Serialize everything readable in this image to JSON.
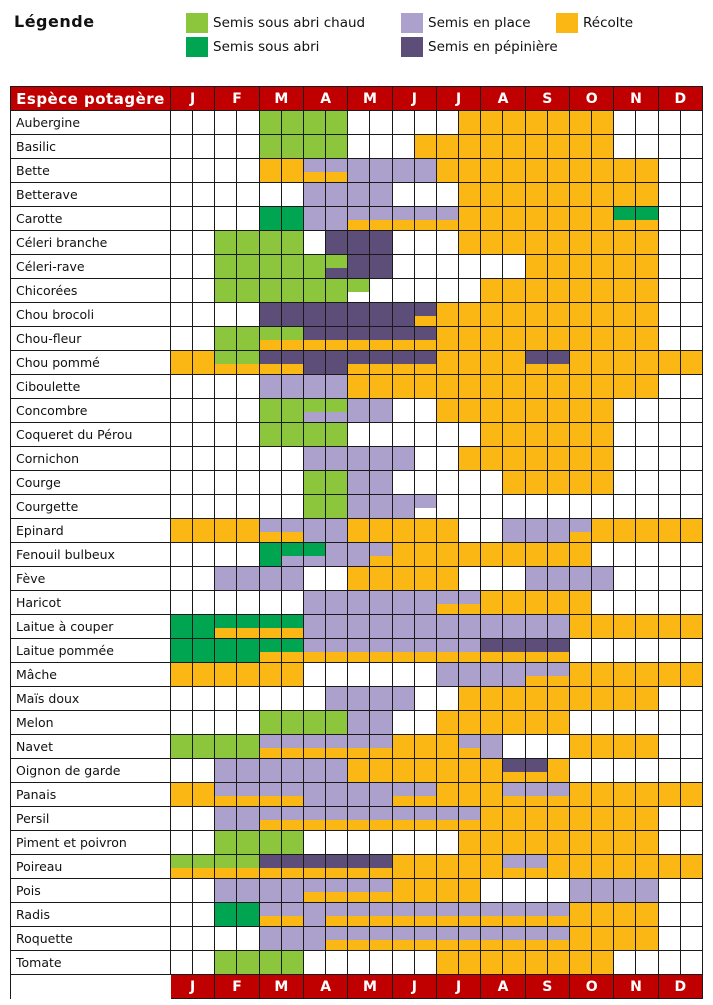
{
  "colors": {
    "AC": "#8cc63c",
    "AB": "#00a551",
    "P": "#aba1cc",
    "PE": "#5c4e78",
    "R": "#fbb713",
    "header_bg": "#c00000",
    "header_text": "#ffffff",
    "grid_line": "#1a1a1a"
  },
  "chart_data": {
    "type": "table",
    "legend_title": "Légende",
    "species_header": "Espèce potagère",
    "months": [
      "J",
      "F",
      "M",
      "A",
      "M",
      "J",
      "J",
      "A",
      "S",
      "O",
      "N",
      "D"
    ],
    "columns_per_month": 2,
    "legend": [
      {
        "key": "AC",
        "label": "Semis sous abri chaud"
      },
      {
        "key": "AB",
        "label": "Semis sous abri"
      },
      {
        "key": "P",
        "label": "Semis en place"
      },
      {
        "key": "PE",
        "label": "Semis en pépinière"
      },
      {
        "key": "R",
        "label": "Récolte"
      }
    ],
    "cell_codes_doc": "24 half-month cells Jan1..Dec2; '' = empty, single key = full cell, 'X/Y' = top X / bottom Y, '_' = white half",
    "rows": [
      {
        "name": "Aubergine",
        "cells": [
          "",
          "",
          "",
          "",
          "AC",
          "AC",
          "AC",
          "AC",
          "",
          "",
          "",
          "",
          "",
          "R",
          "R",
          "R",
          "R",
          "R",
          "R",
          "R",
          "",
          "",
          "",
          ""
        ]
      },
      {
        "name": "Basilic",
        "cells": [
          "",
          "",
          "",
          "",
          "AC",
          "AC",
          "AC",
          "AC",
          "",
          "",
          "",
          "R",
          "R",
          "R",
          "R",
          "R",
          "R",
          "R",
          "R",
          "R",
          "",
          "",
          "",
          ""
        ]
      },
      {
        "name": "Bette",
        "cells": [
          "",
          "",
          "",
          "",
          "R",
          "R",
          "P/R",
          "P/R",
          "P",
          "P",
          "P",
          "P",
          "R",
          "R",
          "R",
          "R",
          "R",
          "R",
          "R",
          "R",
          "R",
          "R",
          "",
          ""
        ]
      },
      {
        "name": "Betterave",
        "cells": [
          "",
          "",
          "",
          "",
          "",
          "",
          "P",
          "P",
          "P",
          "P",
          "",
          "",
          "",
          "R",
          "R",
          "R",
          "R",
          "R",
          "R",
          "R",
          "R",
          "R",
          "",
          ""
        ]
      },
      {
        "name": "Carotte",
        "cells": [
          "",
          "",
          "",
          "",
          "AB",
          "AB",
          "P",
          "P",
          "P/R",
          "P/R",
          "P/R",
          "P/R",
          "P/R",
          "R",
          "R",
          "R",
          "R",
          "R",
          "R",
          "R",
          "AB/R",
          "AB/R",
          "",
          ""
        ]
      },
      {
        "name": "Céleri branche",
        "cells": [
          "",
          "",
          "AC",
          "AC",
          "AC",
          "AC",
          "",
          "PE",
          "PE",
          "PE",
          "",
          "",
          "",
          "R",
          "R",
          "R",
          "R",
          "R",
          "R",
          "R",
          "R",
          "R",
          "",
          ""
        ]
      },
      {
        "name": "Céleri-rave",
        "cells": [
          "",
          "",
          "AC",
          "AC",
          "AC",
          "AC",
          "AC",
          "AC/PE",
          "PE",
          "PE",
          "",
          "",
          "",
          "",
          "",
          "",
          "R",
          "R",
          "R",
          "R",
          "R",
          "R",
          "",
          ""
        ]
      },
      {
        "name": "Chicorées",
        "cells": [
          "",
          "",
          "AC",
          "AC",
          "AC",
          "AC",
          "AC",
          "AC",
          "AC/_",
          "",
          "",
          "",
          "",
          "",
          "R",
          "R",
          "R",
          "R",
          "R",
          "R",
          "R",
          "R",
          "",
          ""
        ]
      },
      {
        "name": "Chou brocoli",
        "cells": [
          "",
          "",
          "",
          "",
          "PE",
          "PE",
          "PE",
          "PE",
          "PE",
          "PE",
          "PE",
          "PE/R",
          "R",
          "R",
          "R",
          "R",
          "R",
          "R",
          "R",
          "R",
          "R",
          "R",
          "",
          ""
        ]
      },
      {
        "name": "Chou-fleur",
        "cells": [
          "",
          "",
          "AC",
          "AC",
          "AC/R",
          "AC/R",
          "PE/R",
          "PE/R",
          "PE/R",
          "PE/R",
          "PE/R",
          "PE/R",
          "R",
          "R",
          "R",
          "R",
          "R",
          "R",
          "R",
          "R",
          "R",
          "R",
          "",
          ""
        ]
      },
      {
        "name": "Chou pommé",
        "cells": [
          "R",
          "R",
          "AC/R",
          "AC/R",
          "PE/R",
          "PE/R",
          "PE",
          "PE",
          "PE/R",
          "PE/R",
          "PE/R",
          "PE/R",
          "R",
          "R",
          "R",
          "R",
          "PE/R",
          "PE/R",
          "R",
          "R",
          "R",
          "R",
          "R",
          "R"
        ]
      },
      {
        "name": "Ciboulette",
        "cells": [
          "",
          "",
          "",
          "",
          "P",
          "P",
          "P",
          "P",
          "R",
          "R",
          "R",
          "R",
          "R",
          "R",
          "R",
          "R",
          "R",
          "R",
          "R",
          "R",
          "R",
          "R",
          "",
          ""
        ]
      },
      {
        "name": "Concombre",
        "cells": [
          "",
          "",
          "",
          "",
          "AC",
          "AC",
          "AC/P",
          "AC/P",
          "P",
          "P",
          "",
          "",
          "R",
          "R",
          "R",
          "R",
          "R",
          "R",
          "R",
          "R",
          "",
          "",
          "",
          ""
        ]
      },
      {
        "name": "Coqueret du Pérou",
        "cells": [
          "",
          "",
          "",
          "",
          "AC",
          "AC",
          "AC",
          "AC",
          "",
          "",
          "",
          "",
          "",
          "",
          "R",
          "R",
          "R",
          "R",
          "R",
          "R",
          "",
          "",
          "",
          ""
        ]
      },
      {
        "name": "Cornichon",
        "cells": [
          "",
          "",
          "",
          "",
          "",
          "",
          "P",
          "P",
          "P",
          "P",
          "P",
          "",
          "",
          "R",
          "R",
          "R",
          "R",
          "R",
          "R",
          "R",
          "",
          "",
          "",
          ""
        ]
      },
      {
        "name": "Courge",
        "cells": [
          "",
          "",
          "",
          "",
          "",
          "",
          "AC",
          "AC",
          "P",
          "P",
          "",
          "",
          "",
          "",
          "",
          "R",
          "R",
          "R",
          "R",
          "R",
          "",
          "",
          "",
          ""
        ]
      },
      {
        "name": "Courgette",
        "cells": [
          "",
          "",
          "",
          "",
          "",
          "",
          "AC",
          "AC",
          "P",
          "P",
          "P",
          "P/_",
          "",
          "",
          "",
          "",
          "",
          "",
          "",
          "",
          "",
          "",
          "",
          ""
        ]
      },
      {
        "name": "Epinard",
        "cells": [
          "R",
          "R",
          "R",
          "R",
          "P/R",
          "P/R",
          "P",
          "P",
          "R",
          "R",
          "R",
          "R",
          "R",
          "",
          "",
          "P",
          "P",
          "P",
          "P/R",
          "R",
          "R",
          "R",
          "R",
          "R"
        ]
      },
      {
        "name": "Fenouil bulbeux",
        "cells": [
          "",
          "",
          "",
          "",
          "AB",
          "AB/P",
          "AB/P",
          "P",
          "P",
          "P/R",
          "R",
          "R",
          "R",
          "R",
          "R",
          "R",
          "R",
          "R",
          "R",
          "",
          "",
          "",
          "",
          ""
        ]
      },
      {
        "name": "Fève",
        "cells": [
          "",
          "",
          "P",
          "P",
          "P",
          "P",
          "",
          "",
          "R",
          "R",
          "R",
          "R",
          "R",
          "",
          "",
          "",
          "P",
          "P",
          "P",
          "P",
          "",
          "",
          "",
          ""
        ]
      },
      {
        "name": "Haricot",
        "cells": [
          "",
          "",
          "",
          "",
          "",
          "",
          "P",
          "P",
          "P",
          "P",
          "P",
          "P",
          "P/R",
          "P/R",
          "R",
          "R",
          "R",
          "R",
          "R",
          "",
          "",
          "",
          "",
          ""
        ]
      },
      {
        "name": "Laitue à couper",
        "cells": [
          "AB",
          "AB",
          "AB/R",
          "AB/R",
          "AB/R",
          "AB/R",
          "P",
          "P",
          "P",
          "P",
          "P",
          "P",
          "P",
          "P",
          "P",
          "P",
          "P",
          "P",
          "R",
          "R",
          "R",
          "R",
          "R",
          "R"
        ]
      },
      {
        "name": "Laitue pommée",
        "cells": [
          "AB",
          "AB",
          "AB",
          "AB",
          "AB/R",
          "AB/R",
          "P/R",
          "P/R",
          "P/R",
          "P/R",
          "P/R",
          "P/R",
          "P/R",
          "P/R",
          "PE/R",
          "PE/R",
          "PE/R",
          "PE/R",
          "",
          "",
          "",
          "",
          "",
          ""
        ]
      },
      {
        "name": "Mâche",
        "cells": [
          "R",
          "R",
          "R",
          "R",
          "R",
          "R",
          "",
          "",
          "",
          "",
          "",
          "",
          "P",
          "P",
          "P",
          "P",
          "P/R",
          "P/R",
          "R",
          "R",
          "R",
          "R",
          "R",
          "R"
        ]
      },
      {
        "name": "Maïs doux",
        "cells": [
          "",
          "",
          "",
          "",
          "",
          "",
          "",
          "P",
          "P",
          "P",
          "P",
          "",
          "",
          "R",
          "R",
          "R",
          "R",
          "R",
          "R",
          "R",
          "R",
          "R",
          "",
          ""
        ]
      },
      {
        "name": "Melon",
        "cells": [
          "",
          "",
          "",
          "",
          "AC",
          "AC",
          "AC",
          "AC",
          "P",
          "P",
          "",
          "",
          "R",
          "R",
          "R",
          "R",
          "R",
          "R",
          "",
          "",
          "",
          "",
          "",
          ""
        ]
      },
      {
        "name": "Navet",
        "cells": [
          "AC",
          "AC",
          "AC",
          "AC",
          "P/R",
          "P/R",
          "P/R",
          "P/R",
          "P/R",
          "P/R",
          "R",
          "R",
          "R",
          "P/R",
          "P",
          "",
          "",
          "",
          "R",
          "R",
          "R",
          "R",
          "",
          ""
        ]
      },
      {
        "name": "Oignon de garde",
        "cells": [
          "",
          "",
          "P",
          "P",
          "P",
          "P",
          "P",
          "P",
          "R",
          "R",
          "R",
          "R",
          "R",
          "R",
          "R",
          "PE/R",
          "PE/R",
          "R",
          "",
          "",
          "",
          "",
          "",
          ""
        ]
      },
      {
        "name": "Panais",
        "cells": [
          "R",
          "R",
          "P/R",
          "P/R",
          "P/R",
          "P/R",
          "P",
          "P",
          "P",
          "P",
          "P/R",
          "P/R",
          "R",
          "R",
          "R",
          "P/R",
          "P/R",
          "P/R",
          "R",
          "R",
          "R",
          "R",
          "R",
          "R"
        ]
      },
      {
        "name": "Persil",
        "cells": [
          "",
          "",
          "P",
          "P",
          "P/R",
          "P/R",
          "P/R",
          "P/R",
          "P/R",
          "P/R",
          "P/R",
          "P/R",
          "P/R",
          "P/R",
          "R",
          "R",
          "R",
          "R",
          "R",
          "R",
          "R",
          "R",
          "",
          ""
        ]
      },
      {
        "name": "Piment et poivron",
        "cells": [
          "",
          "",
          "AC",
          "AC",
          "AC",
          "AC",
          "",
          "",
          "",
          "",
          "",
          "",
          "",
          "R",
          "R",
          "R",
          "R",
          "R",
          "R",
          "R",
          "R",
          "R",
          "",
          ""
        ]
      },
      {
        "name": "Poireau",
        "cells": [
          "AC/R",
          "AC/R",
          "AC/R",
          "AC/R",
          "PE/R",
          "PE/R",
          "PE/R",
          "PE/R",
          "PE/R",
          "PE/R",
          "R",
          "R",
          "R",
          "R",
          "R",
          "P/R",
          "P/R",
          "R",
          "R",
          "R",
          "R",
          "R",
          "R",
          "R"
        ]
      },
      {
        "name": "Pois",
        "cells": [
          "",
          "",
          "P",
          "P",
          "P",
          "P",
          "P/R",
          "P/R",
          "P/R",
          "P/R",
          "R",
          "R",
          "R",
          "R",
          "",
          "",
          "",
          "",
          "P",
          "P",
          "P",
          "P",
          "",
          ""
        ]
      },
      {
        "name": "Radis",
        "cells": [
          "",
          "",
          "AB",
          "AB",
          "P/R",
          "P/R",
          "P",
          "P/R",
          "P/R",
          "P/R",
          "P/R",
          "P/R",
          "P/R",
          "P/R",
          "P/R",
          "P/R",
          "P/R",
          "P/R",
          "R",
          "R",
          "R",
          "R",
          "",
          ""
        ]
      },
      {
        "name": "Roquette",
        "cells": [
          "",
          "",
          "",
          "",
          "P",
          "P",
          "P",
          "P/R",
          "P/R",
          "P/R",
          "P/R",
          "P/R",
          "P/R",
          "P/R",
          "P/R",
          "P/R",
          "P/R",
          "P/R",
          "R",
          "R",
          "R",
          "R",
          "",
          ""
        ]
      },
      {
        "name": "Tomate",
        "cells": [
          "",
          "",
          "AC",
          "AC",
          "AC",
          "AC",
          "",
          "",
          "",
          "",
          "",
          "",
          "R",
          "R",
          "R",
          "R",
          "R",
          "R",
          "R",
          "R",
          "",
          "",
          "",
          ""
        ]
      }
    ]
  }
}
